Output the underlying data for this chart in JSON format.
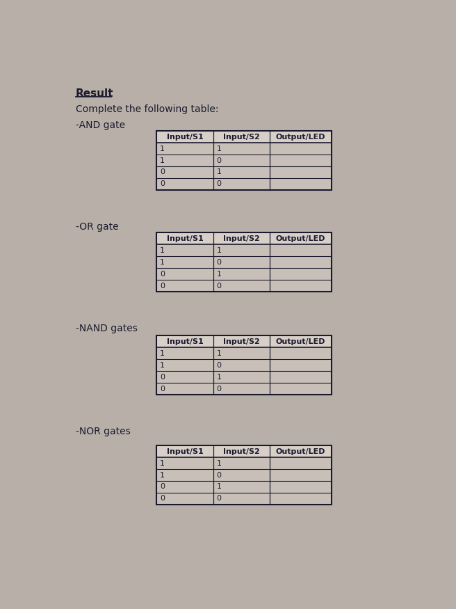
{
  "title1": "Result",
  "subtitle": "Complete the following table:",
  "gates": [
    {
      "label": "-AND gate",
      "col_headers": [
        "Input/S1",
        "Input/S2",
        "Output/LED"
      ],
      "rows": [
        [
          "1",
          "1",
          ""
        ],
        [
          "1",
          "0",
          ""
        ],
        [
          "0",
          "1",
          ""
        ],
        [
          "0",
          "0",
          ""
        ]
      ]
    },
    {
      "label": "-OR gate",
      "col_headers": [
        "Input/S1",
        "Input/S2",
        "Output/LED"
      ],
      "rows": [
        [
          "1",
          "1",
          ""
        ],
        [
          "1",
          "0",
          ""
        ],
        [
          "0",
          "1",
          ""
        ],
        [
          "0",
          "0",
          ""
        ]
      ]
    },
    {
      "label": "-NAND gates",
      "col_headers": [
        "Input/S1",
        "Input/S2",
        "Output/LED"
      ],
      "rows": [
        [
          "1",
          "1",
          ""
        ],
        [
          "1",
          "0",
          ""
        ],
        [
          "0",
          "1",
          ""
        ],
        [
          "0",
          "0",
          ""
        ]
      ]
    },
    {
      "label": "-NOR gates",
      "col_headers": [
        "Input/S1",
        "Input/S2",
        "Output/LED"
      ],
      "rows": [
        [
          "1",
          "1",
          ""
        ],
        [
          "1",
          "0",
          ""
        ],
        [
          "0",
          "1",
          ""
        ],
        [
          "0",
          "0",
          ""
        ]
      ]
    }
  ],
  "bg_color": "#b8b0a8",
  "header_bg": "#d8d0c8",
  "row_bg": "#c8c0b8",
  "border_color": "#1a1a2e",
  "text_color": "#1a1a2e",
  "header_fontsize": 8,
  "data_fontsize": 8,
  "label_fontsize": 10,
  "title_fontsize": 11
}
